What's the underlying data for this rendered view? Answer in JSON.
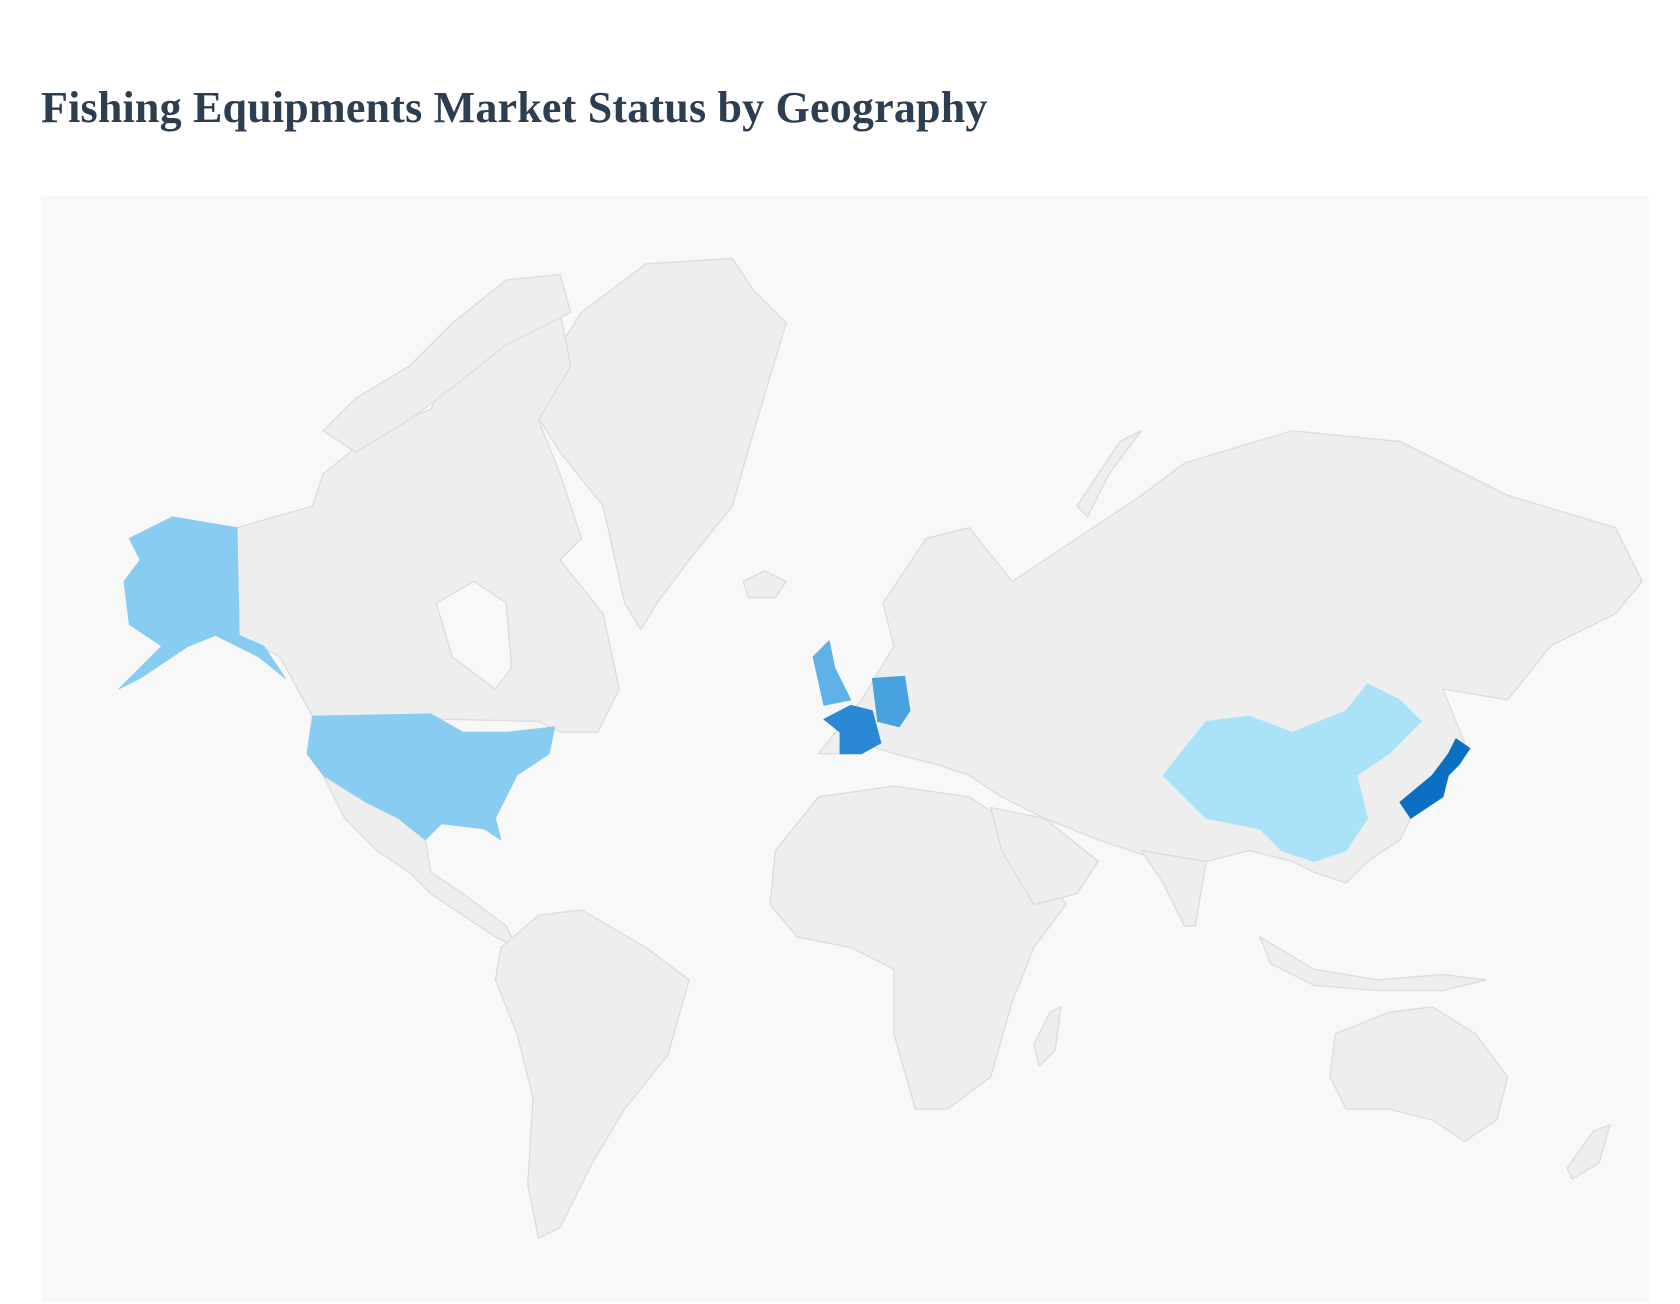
{
  "title": "Fishing Equipments Market Status by Geography",
  "map": {
    "type": "choropleth-world",
    "base_color": "#eeeeee",
    "border_color": "#dcdcdc",
    "background": "#f8f8f8",
    "highlighted_regions": [
      {
        "name": "United States",
        "color": "#88cdf1"
      },
      {
        "name": "China",
        "color": "#aae3f8"
      },
      {
        "name": "United Kingdom",
        "color": "#5fb2e8"
      },
      {
        "name": "Germany",
        "color": "#48a2e0"
      },
      {
        "name": "France",
        "color": "#2a88d6"
      },
      {
        "name": "Japan",
        "color": "#0b6fc3"
      }
    ]
  }
}
